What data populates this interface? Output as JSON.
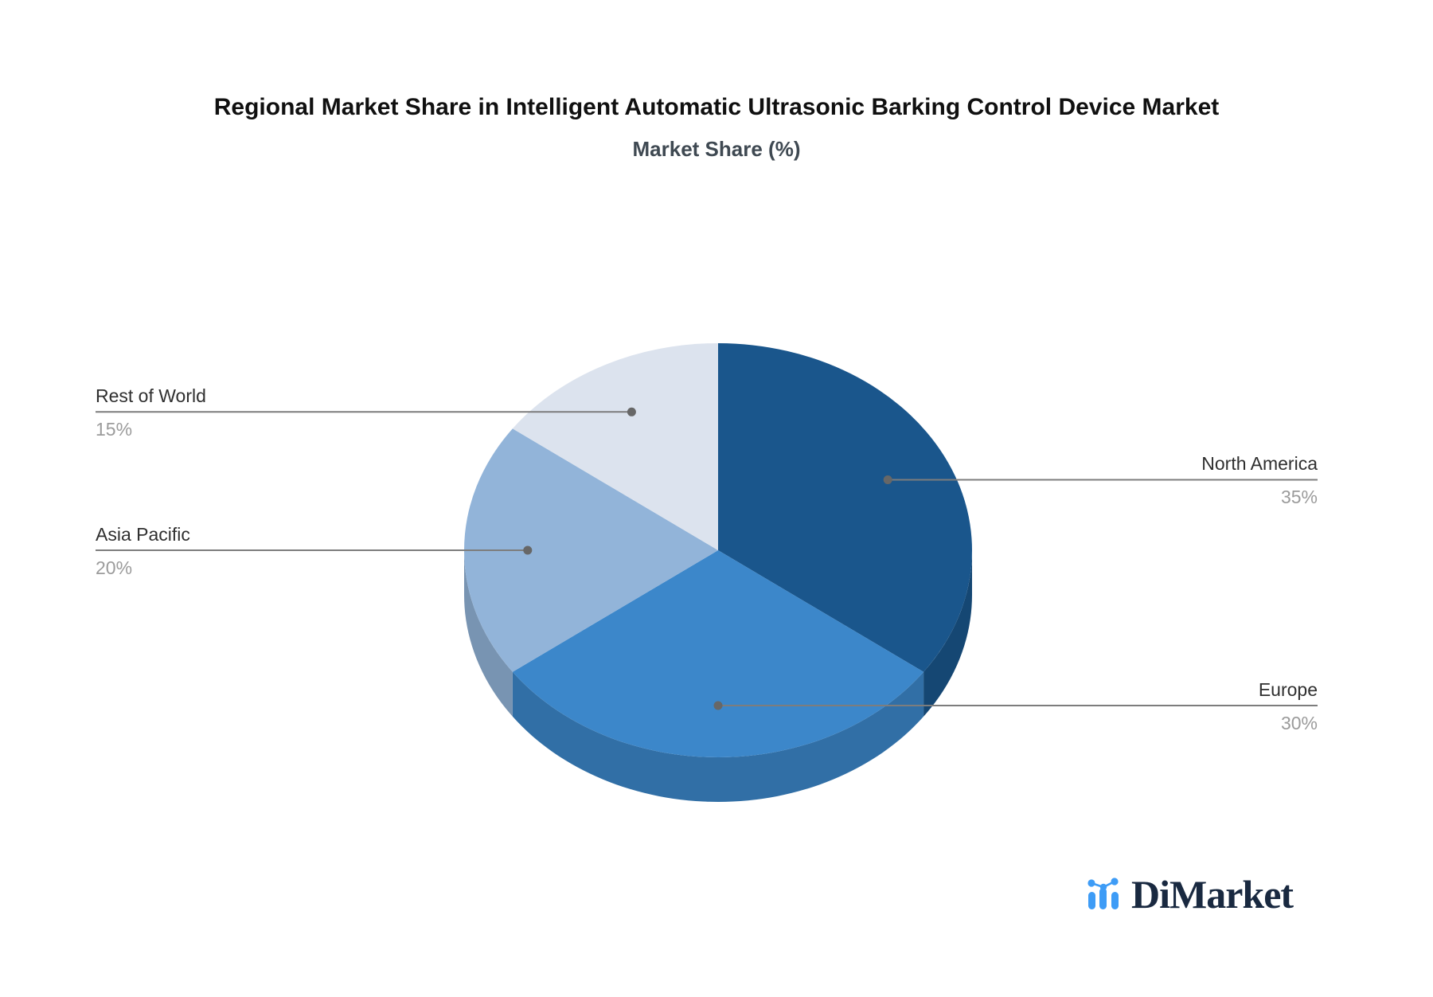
{
  "title": "Regional Market Share in Intelligent Automatic Ultrasonic Barking Control Device Market",
  "subtitle": "Market Share (%)",
  "logo": {
    "text": "DiMarket"
  },
  "chart_data": {
    "type": "pie",
    "style": "3d",
    "unit": "%",
    "start_angle_deg": 0,
    "direction": "clockwise",
    "title": "Regional Market Share in Intelligent Automatic Ultrasonic Barking Control Device Market",
    "subtitle": "Market Share (%)",
    "legend": "none (leader-line labels)",
    "slices": [
      {
        "label": "North America",
        "value": 35,
        "display": "35%",
        "color": "#1a568c"
      },
      {
        "label": "Europe",
        "value": 30,
        "display": "30%",
        "color": "#3c87ca"
      },
      {
        "label": "Asia Pacific",
        "value": 20,
        "display": "20%",
        "color": "#92b4d9"
      },
      {
        "label": "Rest of World",
        "value": 15,
        "display": "15%",
        "color": "#dce3ee"
      }
    ],
    "label_name_color": "#2f2f2f",
    "label_value_color": "#9b9b9b",
    "leader_line_color": "#7d7d7d",
    "leader_dot_color": "#676767"
  }
}
